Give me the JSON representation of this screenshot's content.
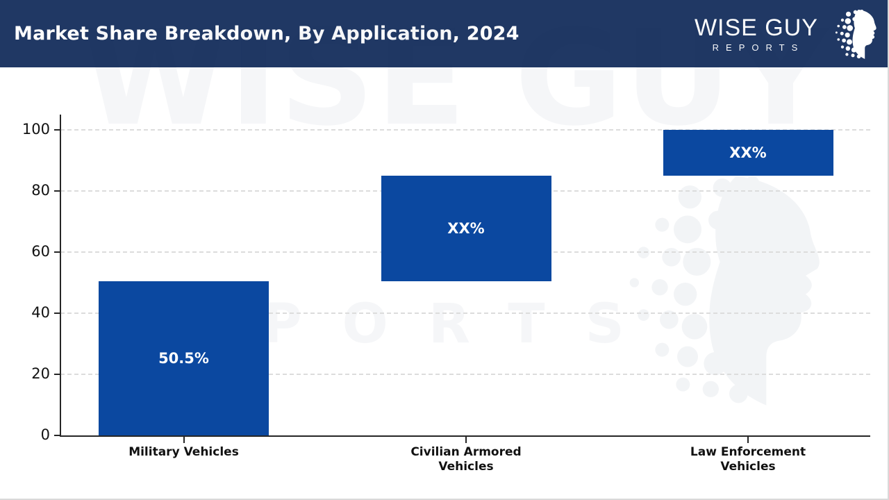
{
  "header": {
    "title": "Market Share Breakdown, By Application, 2024",
    "logo": {
      "line1": "WISE GUY",
      "line2": "REPORTS"
    }
  },
  "watermark": {
    "line1": "WISE GUY",
    "line2": "REPORTS"
  },
  "colors": {
    "header_bg": "#203864",
    "bar_fill": "#0B48A0",
    "grid": "#dcdcdc",
    "axis": "#262626",
    "text": "#111111",
    "title_text": "#ffffff",
    "bar_label_text": "#ffffff"
  },
  "chart_data": {
    "type": "bar",
    "subtype": "stacked-waterfall-percentage",
    "title": "Market Share Breakdown, By Application, 2024",
    "categories": [
      "Military Vehicles",
      "Civilian Armored\nVehicles",
      "Law Enforcement\nVehicles"
    ],
    "bars": [
      {
        "category": "Military Vehicles",
        "label": "50.5%",
        "start": 0,
        "end": 50.5
      },
      {
        "category": "Civilian Armored Vehicles",
        "label": "XX%",
        "start": 50.5,
        "end": 85
      },
      {
        "category": "Law Enforcement Vehicles",
        "label": "XX%",
        "start": 85,
        "end": 100
      }
    ],
    "yticks": [
      0,
      20,
      40,
      60,
      80,
      100
    ],
    "ylim": [
      0,
      105
    ],
    "xlabel": "",
    "ylabel": "",
    "grid": "horizontal-dashed",
    "legend": "none"
  }
}
